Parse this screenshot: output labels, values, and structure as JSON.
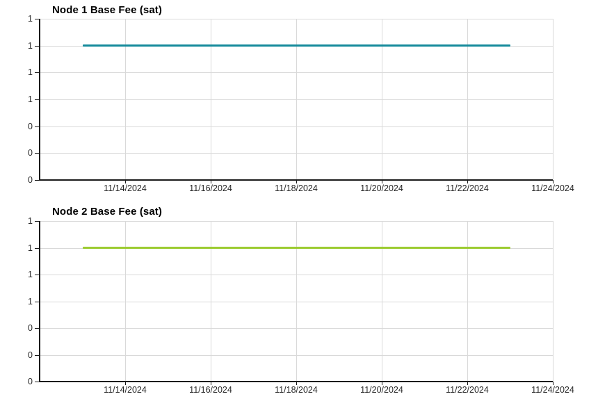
{
  "style": {
    "background": "#ffffff",
    "axis_color": "#1a1a1a",
    "grid_color": "#d9d9d9",
    "tick_label_color": "#262626",
    "title_color": "#000000"
  },
  "chart_data": [
    {
      "type": "line",
      "title": "Node 1 Base Fee (sat)",
      "xlabel": "",
      "ylabel": "",
      "x_range": [
        "11/12/2024",
        "11/24/2024"
      ],
      "x_ticks": [
        "11/14/2024",
        "11/16/2024",
        "11/18/2024",
        "11/20/2024",
        "11/22/2024",
        "11/24/2024"
      ],
      "ylim": [
        0,
        1.2
      ],
      "y_ticks": [
        1.2,
        1.0,
        0.8,
        0.6,
        0.4,
        0.2,
        0.0
      ],
      "y_tick_labels": [
        "1",
        "1",
        "1",
        "1",
        "0",
        "0",
        "0"
      ],
      "grid": true,
      "legend": "none",
      "series": [
        {
          "name": "Node 1 Base Fee",
          "color": "#148a9b",
          "points": [
            {
              "x": "11/13/2024",
              "y": 1
            },
            {
              "x": "11/23/2024",
              "y": 1
            }
          ]
        }
      ]
    },
    {
      "type": "line",
      "title": "Node 2 Base Fee (sat)",
      "xlabel": "",
      "ylabel": "",
      "x_range": [
        "11/12/2024",
        "11/24/2024"
      ],
      "x_ticks": [
        "11/14/2024",
        "11/16/2024",
        "11/18/2024",
        "11/20/2024",
        "11/22/2024",
        "11/24/2024"
      ],
      "ylim": [
        0,
        1.2
      ],
      "y_ticks": [
        1.2,
        1.0,
        0.8,
        0.6,
        0.4,
        0.2,
        0.0
      ],
      "y_tick_labels": [
        "1",
        "1",
        "1",
        "1",
        "0",
        "0",
        "0"
      ],
      "grid": true,
      "legend": "none",
      "series": [
        {
          "name": "Node 2 Base Fee",
          "color": "#9ccb30",
          "points": [
            {
              "x": "11/13/2024",
              "y": 1
            },
            {
              "x": "11/23/2024",
              "y": 1
            }
          ]
        }
      ]
    }
  ]
}
